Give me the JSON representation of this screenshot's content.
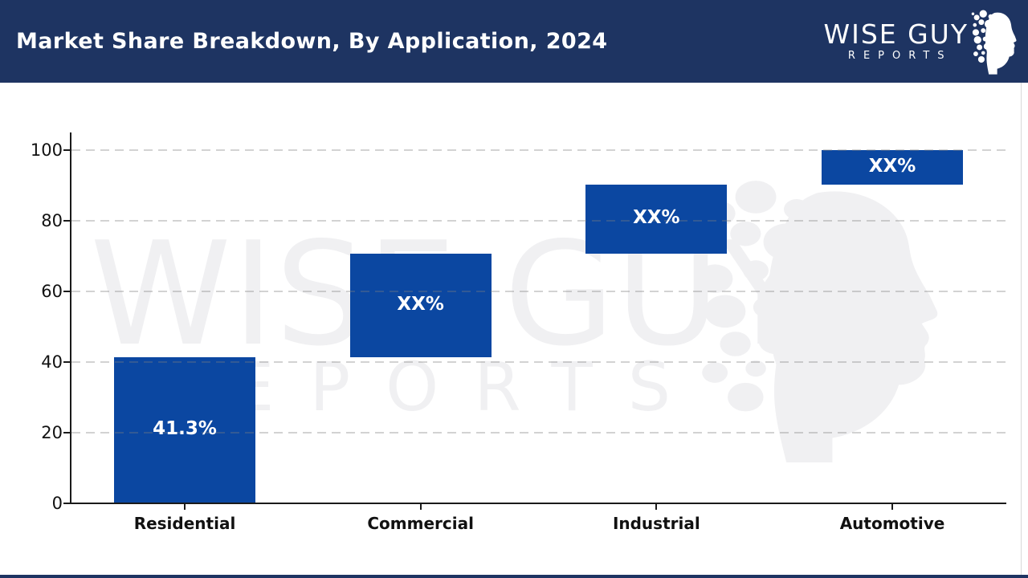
{
  "header": {
    "title": "Market Share Breakdown, By Application, 2024",
    "logo": {
      "line1": "WISE GUY",
      "line2": "REPORTS"
    }
  },
  "watermark": {
    "line1": "WISE GUY",
    "line2": "REPORTS"
  },
  "chart_data": {
    "type": "bar",
    "subtype": "waterfall",
    "title": "Market Share Breakdown, By Application, 2024",
    "categories": [
      "Residential",
      "Commercial",
      "Industrial",
      "Automotive"
    ],
    "segments": [
      {
        "category": "Residential",
        "start": 0,
        "end": 41.3,
        "label": "41.3%"
      },
      {
        "category": "Commercial",
        "start": 41.3,
        "end": 70.7,
        "label": "XX%"
      },
      {
        "category": "Industrial",
        "start": 70.7,
        "end": 90.2,
        "label": "XX%"
      },
      {
        "category": "Automotive",
        "start": 90.2,
        "end": 100,
        "label": "XX%"
      }
    ],
    "yticks": [
      0,
      20,
      40,
      60,
      80,
      100
    ],
    "ylim": [
      0,
      105
    ],
    "xlabel": "",
    "ylabel": "",
    "grid": "horizontal-dashed",
    "legend": "none"
  },
  "colors": {
    "header_bg": "#1e3462",
    "bar": "#0b47a1",
    "bar_label": "#ffffff",
    "watermark": "#f0f0f2",
    "axis": "#1a1a1a",
    "footer_bar": "#1e3462"
  }
}
